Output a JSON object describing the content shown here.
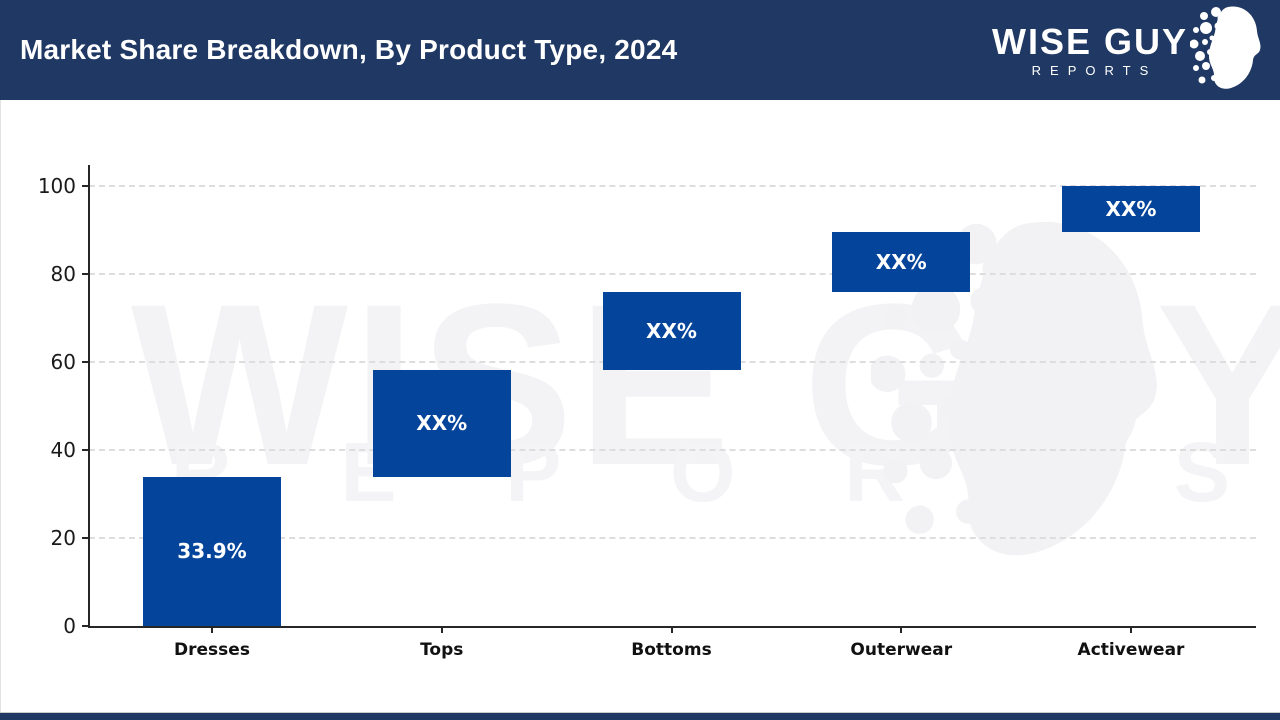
{
  "header": {
    "title": "Market Share Breakdown, By Product Type, 2024",
    "bg_color": "#1f3864",
    "logo": {
      "line1": "WISE GUY",
      "line2": "REPORTS"
    }
  },
  "watermark": {
    "line1": "WISE GUY",
    "line2": "REPORTS"
  },
  "chart_data": {
    "type": "bar",
    "subtype": "waterfall",
    "title": "Market Share Breakdown, By Product Type, 2024",
    "categories": [
      "Dresses",
      "Tops",
      "Bottoms",
      "Outerwear",
      "Activewear"
    ],
    "segments": [
      {
        "category": "Dresses",
        "start": 0,
        "end": 33.9,
        "label": "33.9%"
      },
      {
        "category": "Tops",
        "start": 33.9,
        "end": 58.2,
        "label": "XX%"
      },
      {
        "category": "Bottoms",
        "start": 58.2,
        "end": 75.9,
        "label": "XX%"
      },
      {
        "category": "Outerwear",
        "start": 75.9,
        "end": 89.6,
        "label": "XX%"
      },
      {
        "category": "Activewear",
        "start": 89.6,
        "end": 100,
        "label": "XX%"
      }
    ],
    "y_ticks": [
      0,
      20,
      40,
      60,
      80,
      100
    ],
    "ylim": [
      0,
      105
    ],
    "xlabel": "",
    "ylabel": "",
    "grid": "horizontal-dashed",
    "legend": "none",
    "bar_color": "#04449a",
    "bar_label_color": "#ffffff",
    "axis_color": "#262626",
    "gridline_color": "#dddddd"
  },
  "footer": {
    "bar_color": "#1f3864"
  }
}
